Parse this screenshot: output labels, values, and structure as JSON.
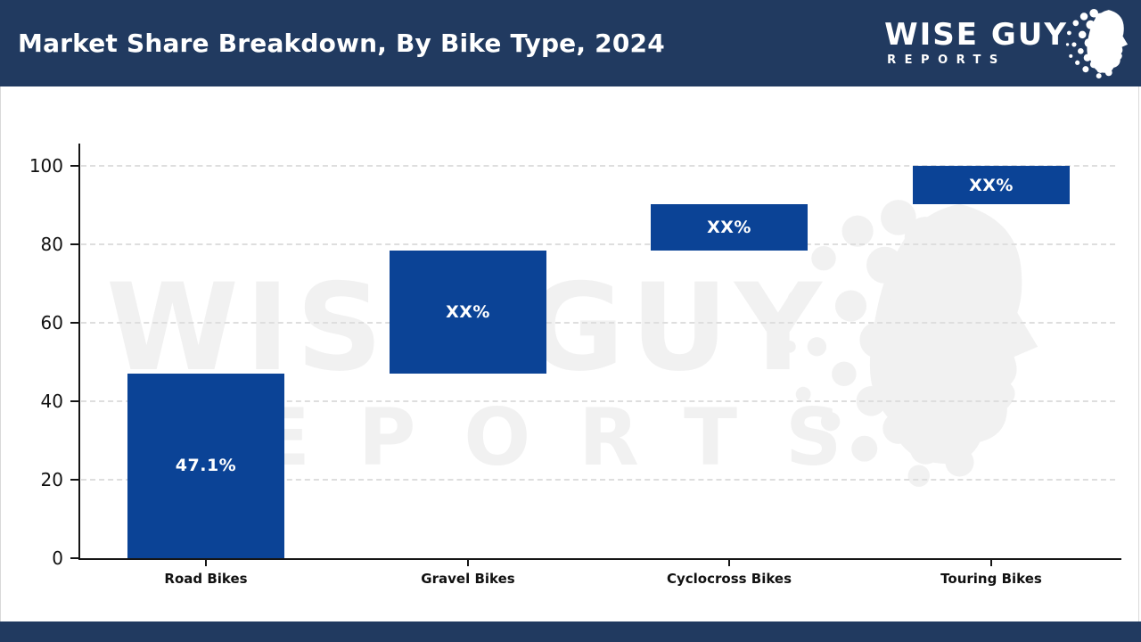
{
  "header": {
    "title": "Market Share Breakdown, By Bike Type, 2024",
    "logo": {
      "line1": "WISE GUY",
      "line2": "REPORTS"
    }
  },
  "watermark": {
    "line1": "WISE GUY",
    "line2": "REPORTS"
  },
  "chart_data": {
    "type": "bar",
    "subtype": "floating-segment-waterfall",
    "title": "Market Share Breakdown, By Bike Type, 2024",
    "categories": [
      "Road Bikes",
      "Gravel Bikes",
      "Cyclocross Bikes",
      "Touring Bikes"
    ],
    "series": [
      {
        "name": "Market share (%)",
        "segments": [
          {
            "category": "Road Bikes",
            "start": 0,
            "end": 47.1,
            "label": "47.1%"
          },
          {
            "category": "Gravel Bikes",
            "start": 47.1,
            "end": 78.4,
            "label": "XX%"
          },
          {
            "category": "Cyclocross Bikes",
            "start": 78.4,
            "end": 90.2,
            "label": "XX%"
          },
          {
            "category": "Touring Bikes",
            "start": 90.2,
            "end": 100,
            "label": "XX%"
          }
        ]
      }
    ],
    "xlabel": "",
    "ylabel": "",
    "ylim": [
      0,
      100
    ],
    "yticks": [
      0,
      20,
      40,
      60,
      80,
      100
    ],
    "grid": "horizontal-dashed",
    "legend_position": "none",
    "colors": {
      "bar": "#0b4396",
      "bar_label": "#ffffff",
      "header_bg": "#213a60",
      "header_text": "#ffffff",
      "gridline": "#dedede",
      "axis": "#151515",
      "watermark": "#f1f1f1"
    }
  }
}
